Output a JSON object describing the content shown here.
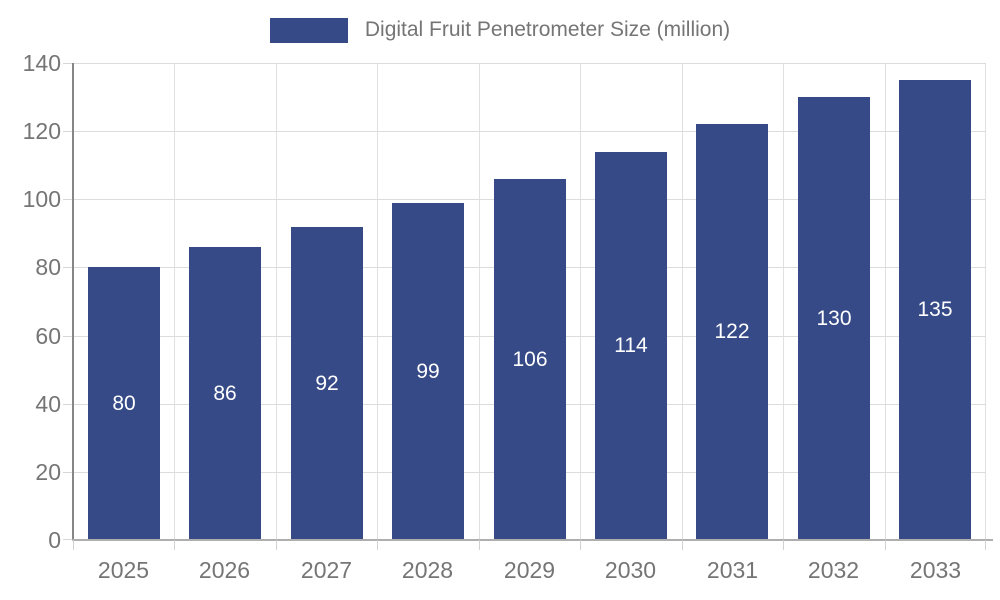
{
  "legend": {
    "label": "Digital Fruit Penetrometer Size (million)"
  },
  "chart_data": {
    "type": "bar",
    "title": "Digital Fruit Penetrometer Size (million)",
    "categories": [
      "2025",
      "2026",
      "2027",
      "2028",
      "2029",
      "2030",
      "2031",
      "2032",
      "2033"
    ],
    "values": [
      80,
      86,
      92,
      99,
      106,
      114,
      122,
      130,
      135
    ],
    "series": [
      {
        "name": "Digital Fruit Penetrometer Size (million)",
        "values": [
          80,
          86,
          92,
          99,
          106,
          114,
          122,
          130,
          135
        ]
      }
    ],
    "xlabel": "",
    "ylabel": "",
    "ylim": [
      0,
      140
    ],
    "yticks": [
      0,
      20,
      40,
      60,
      80,
      100,
      120,
      140
    ],
    "grid": true,
    "legend_position": "top",
    "value_labels": "inside-center",
    "colors": {
      "bar": "#364A88",
      "value_label": "#ffffff",
      "axis_text": "#757575",
      "gridline": "#dcdcdc",
      "left_spine": "#868686",
      "bottom_axis": "#aeaeae",
      "background": "#ffffff"
    }
  }
}
